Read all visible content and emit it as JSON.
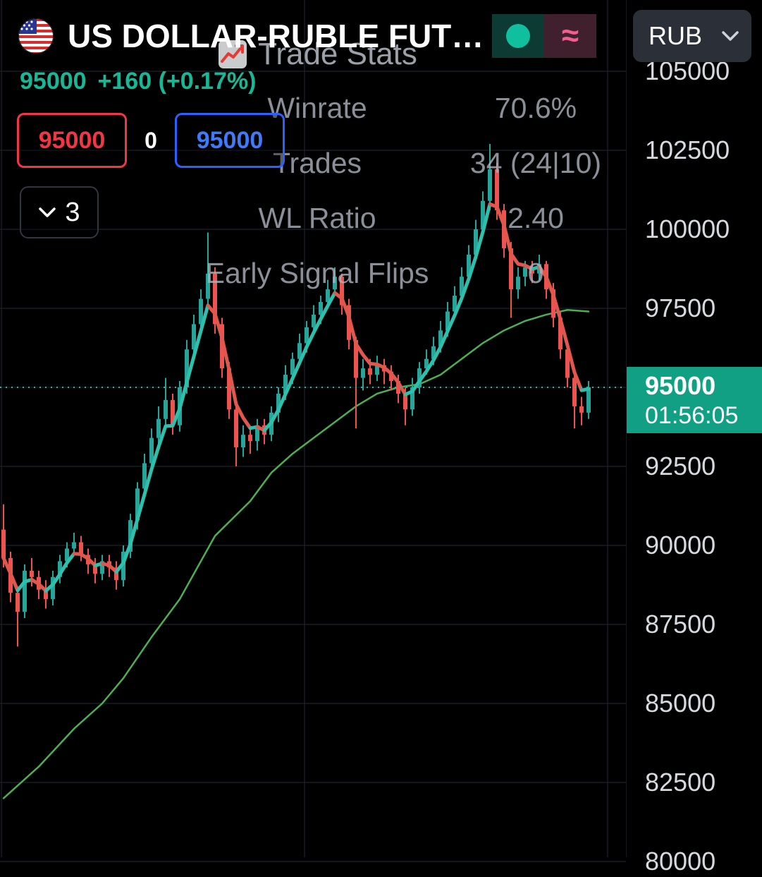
{
  "header": {
    "title": "US DOLLAR-RUBLE FUT…",
    "price": "95000",
    "change": "+160 (+0.17%)",
    "sell_price": "95000",
    "spread": "0",
    "buy_price": "95000",
    "interval": "3",
    "currency": "RUB"
  },
  "trade_stats": {
    "title": "Trade Stats",
    "rows": [
      {
        "label": "Winrate",
        "value": "70.6%"
      },
      {
        "label": "Trades",
        "value": "34 (24|10)"
      },
      {
        "label": "WL Ratio",
        "value": "2.40"
      },
      {
        "label": "Early Signal Flips",
        "value": "0"
      }
    ]
  },
  "price_axis": {
    "labels": [
      "105000",
      "102500",
      "100000",
      "97500",
      "92500",
      "90000",
      "87500",
      "85000",
      "82500",
      "80000"
    ],
    "current": {
      "price": "95000",
      "time": "01:56:05"
    }
  },
  "colors": {
    "up": "#26a69a",
    "down": "#ef5350",
    "fast_ma_up": "#2cc0ad",
    "fast_ma_down": "#e2574b",
    "slow_ma": "#4caf50",
    "grid": "#191d26",
    "dotted_price_line": "#2bb3a0",
    "accent_green": "#17b897",
    "sell_red": "#f23645",
    "buy_blue": "#2962ff",
    "badge": "#12a085"
  },
  "chart_data": {
    "type": "candlestick",
    "symbol": "US DOLLAR-RUBLE FUTURES",
    "current_price": 95000,
    "grid_step": 2500,
    "y_range_visible": [
      80000,
      107000
    ],
    "grid_prices": [
      80000,
      82500,
      85000,
      87500,
      90000,
      92500,
      95000,
      97500,
      100000,
      102500,
      105000
    ],
    "candles": [
      [
        90500,
        91300,
        89300,
        89600
      ],
      [
        89600,
        89800,
        88200,
        88500
      ],
      [
        88500,
        88700,
        86800,
        87900
      ],
      [
        87900,
        89400,
        87700,
        89200
      ],
      [
        89200,
        89600,
        88700,
        89000
      ],
      [
        89000,
        89200,
        88300,
        88600
      ],
      [
        88600,
        88900,
        88000,
        88300
      ],
      [
        88300,
        89200,
        88100,
        89000
      ],
      [
        89000,
        89700,
        88800,
        89500
      ],
      [
        89500,
        90100,
        89300,
        89900
      ],
      [
        89900,
        90400,
        89700,
        90100
      ],
      [
        90100,
        90300,
        89500,
        89700
      ],
      [
        89700,
        89900,
        89100,
        89400
      ],
      [
        89400,
        89600,
        88800,
        89100
      ],
      [
        89100,
        89700,
        88900,
        89500
      ],
      [
        89500,
        89700,
        89000,
        89300
      ],
      [
        89300,
        89500,
        88600,
        88900
      ],
      [
        88900,
        90000,
        88700,
        89800
      ],
      [
        89800,
        91000,
        89600,
        90800
      ],
      [
        90800,
        92000,
        90500,
        91800
      ],
      [
        91800,
        92900,
        91500,
        92600
      ],
      [
        92600,
        93700,
        92300,
        93400
      ],
      [
        93400,
        94400,
        93100,
        94000
      ],
      [
        94000,
        95300,
        93800,
        94600
      ],
      [
        94600,
        94800,
        93500,
        93800
      ],
      [
        93800,
        95200,
        93600,
        95000
      ],
      [
        95000,
        96500,
        94800,
        96200
      ],
      [
        96200,
        97300,
        95900,
        97000
      ],
      [
        97000,
        98100,
        96700,
        97800
      ],
      [
        97800,
        99900,
        97500,
        98600
      ],
      [
        98600,
        98800,
        96700,
        97000
      ],
      [
        97000,
        97200,
        95300,
        95600
      ],
      [
        95600,
        95800,
        94000,
        94300
      ],
      [
        94300,
        94500,
        92500,
        93100
      ],
      [
        93100,
        93800,
        92800,
        93500
      ],
      [
        93500,
        93700,
        92900,
        93300
      ],
      [
        93300,
        94000,
        93000,
        93800
      ],
      [
        93800,
        94000,
        93200,
        93500
      ],
      [
        93500,
        94400,
        93300,
        94200
      ],
      [
        94200,
        95000,
        93900,
        94800
      ],
      [
        94800,
        95700,
        94600,
        95400
      ],
      [
        95400,
        96100,
        95100,
        95900
      ],
      [
        95900,
        96700,
        95700,
        96400
      ],
      [
        96400,
        97100,
        96100,
        96900
      ],
      [
        96900,
        97600,
        96700,
        97300
      ],
      [
        97300,
        97900,
        97000,
        97700
      ],
      [
        97700,
        98400,
        97500,
        98100
      ],
      [
        98100,
        98800,
        97900,
        98500
      ],
      [
        98500,
        98600,
        97300,
        97600
      ],
      [
        97600,
        97800,
        96200,
        96500
      ],
      [
        96500,
        96600,
        93700,
        95300
      ],
      [
        95300,
        95900,
        94900,
        95600
      ],
      [
        95600,
        95900,
        95100,
        95400
      ],
      [
        95400,
        96000,
        95200,
        95700
      ],
      [
        95700,
        95900,
        95100,
        95500
      ],
      [
        95500,
        95700,
        94900,
        95200
      ],
      [
        95200,
        95400,
        94500,
        94800
      ],
      [
        94800,
        95000,
        93800,
        94300
      ],
      [
        94300,
        95300,
        94100,
        95000
      ],
      [
        95000,
        95800,
        94800,
        95600
      ],
      [
        95600,
        96200,
        95400,
        95900
      ],
      [
        95900,
        96600,
        95700,
        96300
      ],
      [
        96300,
        97100,
        96100,
        96800
      ],
      [
        96800,
        97700,
        96600,
        97400
      ],
      [
        97400,
        98200,
        97200,
        97900
      ],
      [
        97900,
        98800,
        97700,
        98500
      ],
      [
        98500,
        99500,
        98300,
        99200
      ],
      [
        99200,
        100300,
        99000,
        100000
      ],
      [
        100000,
        101200,
        99800,
        100900
      ],
      [
        100900,
        102700,
        100600,
        101900
      ],
      [
        101900,
        102100,
        100300,
        100600
      ],
      [
        100600,
        100800,
        99100,
        99400
      ],
      [
        99400,
        99600,
        97200,
        98100
      ],
      [
        98100,
        98800,
        97800,
        98500
      ],
      [
        98500,
        99000,
        98200,
        98800
      ],
      [
        98800,
        99000,
        98300,
        98600
      ],
      [
        98600,
        99200,
        98400,
        98900
      ],
      [
        98900,
        99000,
        97800,
        98100
      ],
      [
        98100,
        98300,
        96900,
        97200
      ],
      [
        97200,
        97400,
        95900,
        96200
      ],
      [
        96200,
        96400,
        95000,
        95300
      ],
      [
        95300,
        95500,
        93700,
        94400
      ],
      [
        94400,
        94700,
        93800,
        94200
      ],
      [
        94200,
        95200,
        94000,
        95000
      ]
    ],
    "slow_ma_points": [
      [
        0,
        82000
      ],
      [
        5,
        83000
      ],
      [
        10,
        84200
      ],
      [
        14,
        85000
      ],
      [
        17,
        85800
      ],
      [
        21,
        87100
      ],
      [
        25,
        88300
      ],
      [
        30,
        90300
      ],
      [
        35,
        91400
      ],
      [
        38,
        92300
      ],
      [
        41,
        92900
      ],
      [
        44,
        93400
      ],
      [
        47,
        93900
      ],
      [
        50,
        94400
      ],
      [
        53,
        94800
      ],
      [
        56,
        95000
      ],
      [
        59,
        95100
      ],
      [
        62,
        95400
      ],
      [
        65,
        95900
      ],
      [
        68,
        96400
      ],
      [
        71,
        96800
      ],
      [
        74,
        97100
      ],
      [
        77,
        97300
      ],
      [
        80,
        97450
      ],
      [
        83,
        97400
      ]
    ],
    "fast_ma": {
      "type": "ema",
      "period": 3,
      "colored_by_slope": true
    }
  }
}
